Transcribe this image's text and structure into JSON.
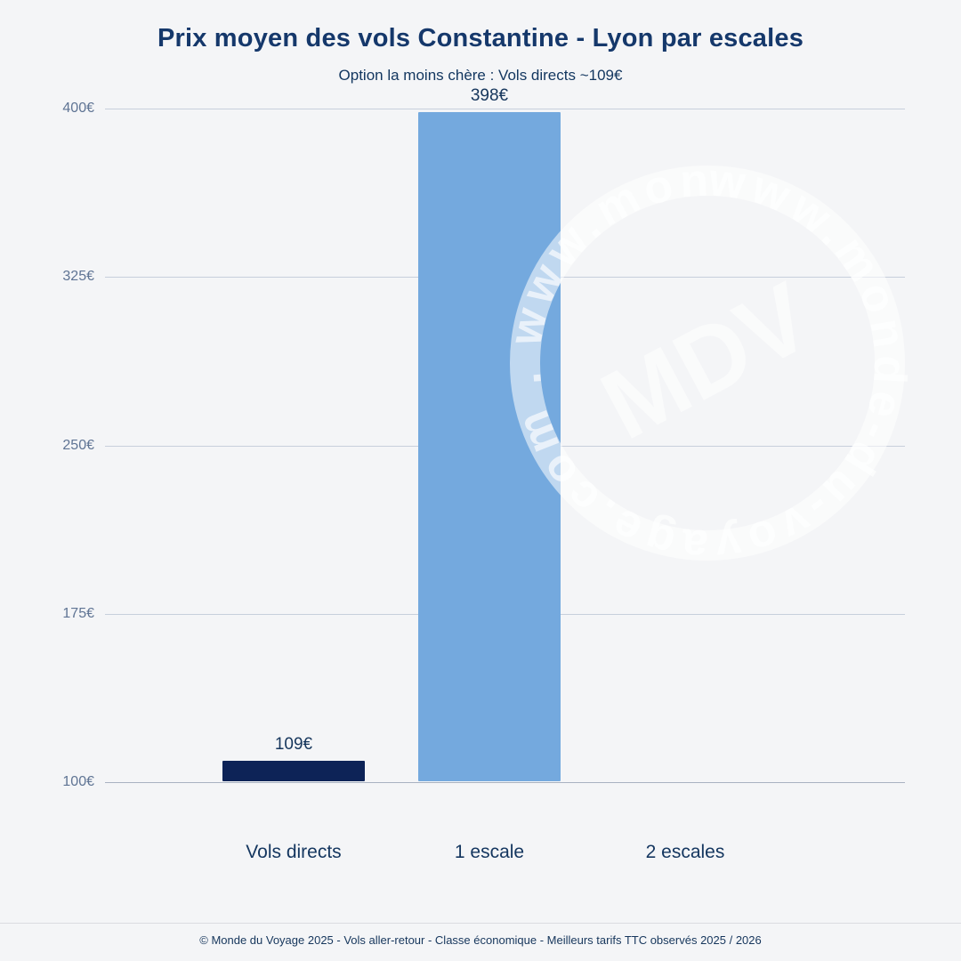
{
  "header": {
    "title": "Prix moyen des vols Constantine - Lyon par escales",
    "subtitle": "Option la moins chère : Vols directs ~109€"
  },
  "watermark": {
    "circle_text": "www.monde-du-voyage.com . www.monde-du-voyage.com .",
    "badge": "MDV"
  },
  "footer": {
    "text": "© Monde du Voyage 2025 - Vols aller-retour - Classe économique - Meilleurs tarifs TTC observés 2025 / 2026"
  },
  "colors": {
    "background": "#f4f5f7",
    "title": "#15386b",
    "gridline": "#c7cfdc",
    "tick_label": "#5f7494",
    "bar_direct": "#0d2357",
    "bar_one_stop": "#74a9de"
  },
  "chart_data": {
    "type": "bar",
    "title": "Prix moyen des vols Constantine - Lyon par escales",
    "subtitle": "Option la moins chère : Vols directs ~109€",
    "categories": [
      "Vols directs",
      "1 escale",
      "2 escales"
    ],
    "values": [
      109,
      398,
      null
    ],
    "value_labels": [
      "109€",
      "398€",
      ""
    ],
    "bar_colors": [
      "#0d2357",
      "#74a9de",
      null
    ],
    "ylim": [
      100,
      400
    ],
    "yticks": [
      400,
      325,
      250,
      175,
      100
    ],
    "ytick_labels": [
      "400€",
      "325€",
      "250€",
      "175€",
      "100€"
    ],
    "xlabel": "",
    "ylabel": "",
    "grid": true,
    "legend": false
  }
}
